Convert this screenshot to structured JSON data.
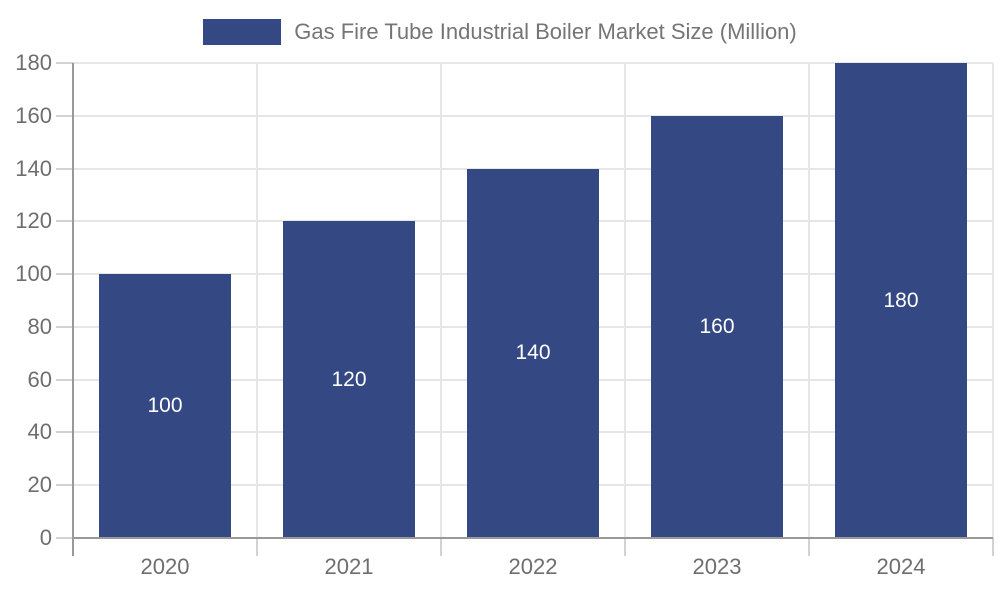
{
  "chart_data": {
    "type": "bar",
    "title": "Gas Fire Tube Industrial Boiler Market Size (Million)",
    "series_name": "Gas Fire Tube Industrial Boiler Market Size (Million)",
    "categories": [
      "2020",
      "2021",
      "2022",
      "2023",
      "2024"
    ],
    "values": [
      100,
      120,
      140,
      160,
      180
    ],
    "xlabel": "",
    "ylabel": "",
    "ylim": [
      0,
      180
    ],
    "ytick_step": 20,
    "ytick_labels": [
      "0",
      "20",
      "40",
      "60",
      "80",
      "100",
      "120",
      "140",
      "160",
      "180"
    ],
    "grid": true,
    "legend_position": "top",
    "bar_label_position": "inside-center",
    "colors": {
      "bar": "#344883",
      "bar_label_text": "#ffffff",
      "axis_line": "#999999",
      "grid_line": "#e6e6e6",
      "tick_mark": "#d2d2d2",
      "tick_text": "#6e6e6e",
      "legend_text": "#757575",
      "background": "#ffffff"
    }
  }
}
